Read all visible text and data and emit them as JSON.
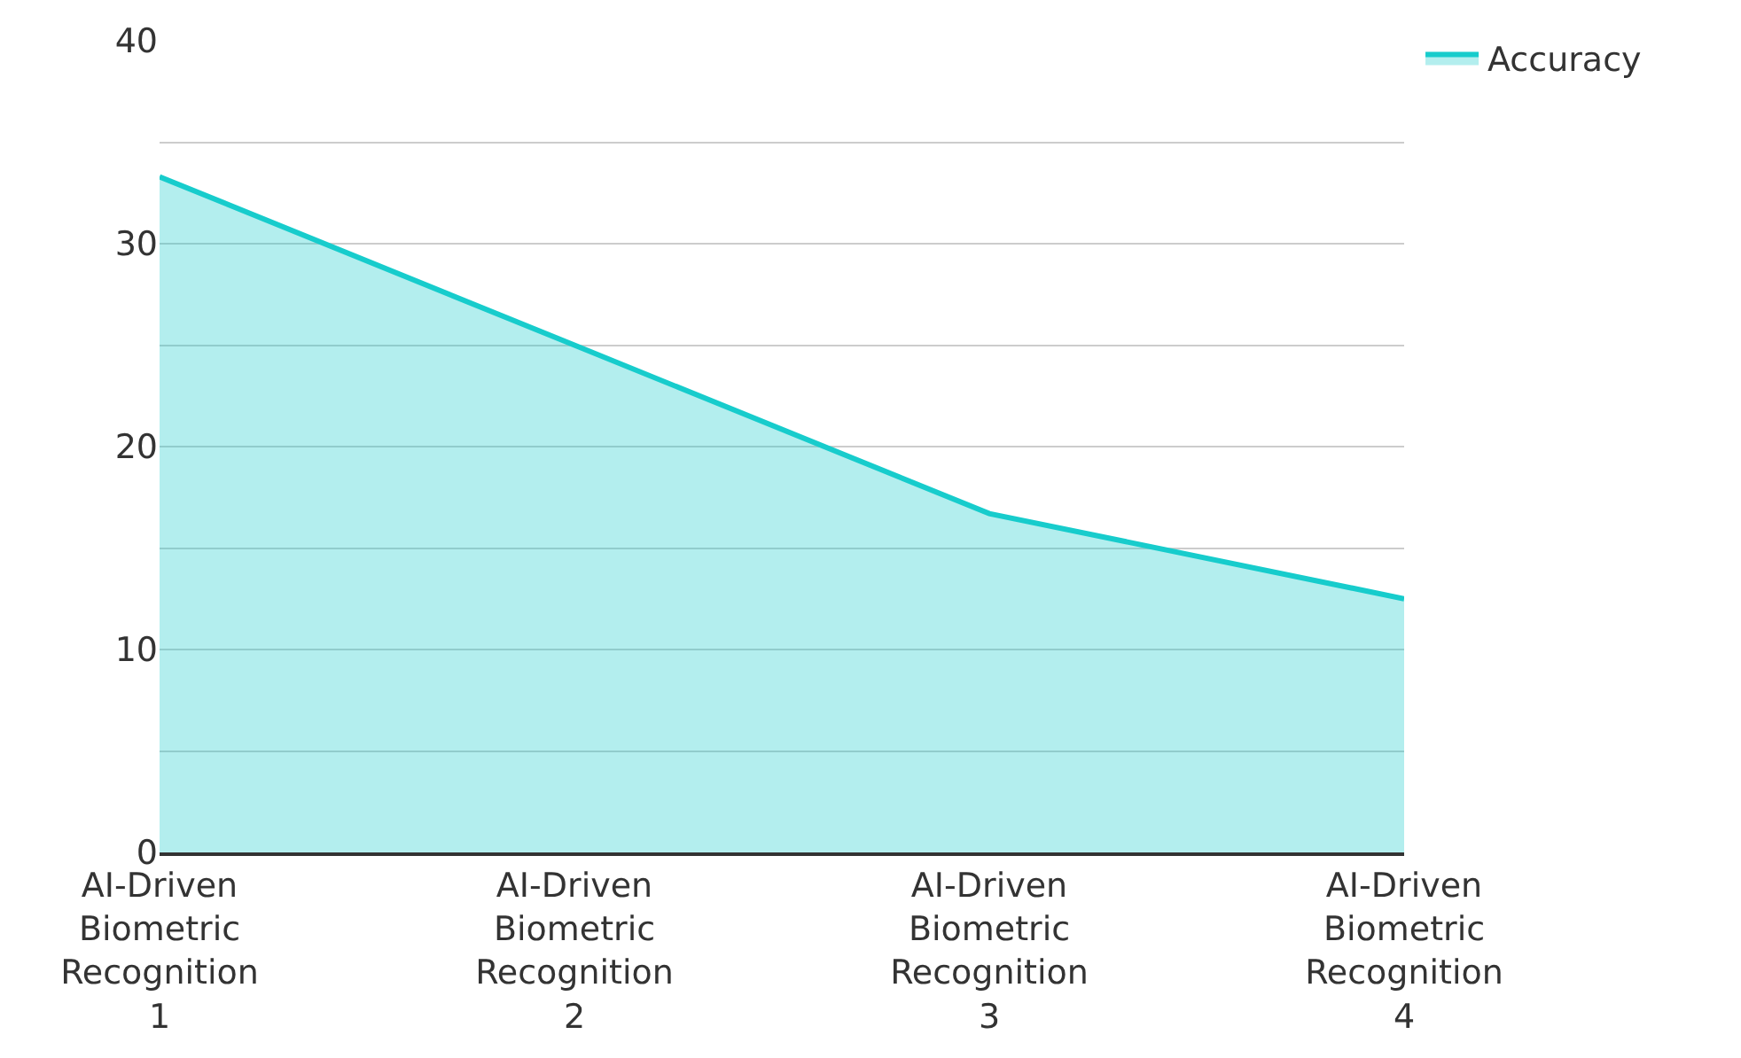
{
  "chart_data": {
    "type": "area",
    "categories": [
      "AI-Driven Biometric Recognition 1",
      "AI-Driven Biometric Recognition 2",
      "AI-Driven Biometric Recognition 3",
      "AI-Driven Biometric Recognition 4"
    ],
    "series": [
      {
        "name": "Accuracy",
        "color": "#17cccc",
        "values": [
          33.3,
          25,
          16.7,
          12.5
        ]
      }
    ],
    "ylim": [
      0,
      40
    ],
    "yticks": [
      0,
      {
        "value": 5,
        "label": null
      },
      10,
      {
        "value": 15,
        "label": null
      },
      20,
      {
        "value": 25,
        "label": null
      },
      30,
      {
        "value": 35,
        "label": null
      },
      40
    ],
    "grid": "y",
    "legend": "top right",
    "marker": "none",
    "line_style": "solid"
  }
}
